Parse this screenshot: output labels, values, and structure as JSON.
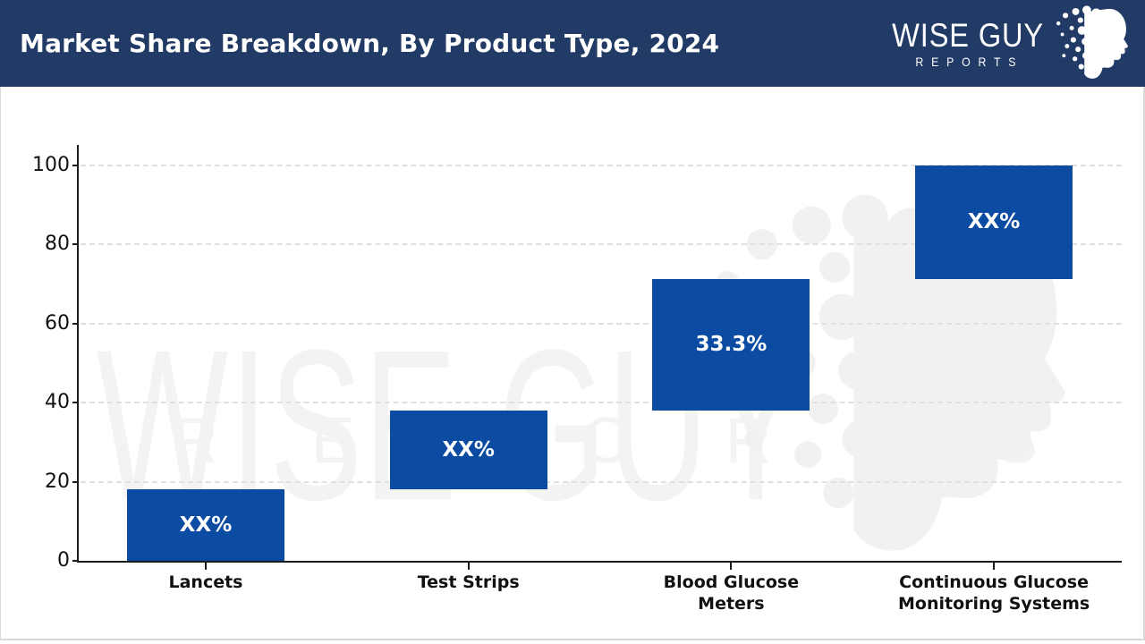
{
  "header": {
    "title": "Market Share Breakdown, By Product Type, 2024",
    "logo": {
      "line1": "WISE GUY",
      "line2": "REPORTS",
      "icon": "dotted-face-profile"
    }
  },
  "watermark": {
    "line1": "WISE GUY",
    "line2": "R E P O R T S",
    "icon": "dotted-face-profile"
  },
  "colors": {
    "header_bg": "#213a66",
    "bar": "#0b4ba1",
    "bar_label": "#ffffff",
    "grid": "#e0e0e0",
    "axis": "#1a1a1a",
    "watermark": "#f3f3f3",
    "frame": "#d9d9d9"
  },
  "chart_data": {
    "type": "bar",
    "subtype": "floating-segment-waterfall",
    "title": "Market Share Breakdown, By Product Type, 2024",
    "categories": [
      "Lancets",
      "Test Strips",
      "Blood Glucose\nMeters",
      "Continuous Glucose\nMonitoring Systems"
    ],
    "series": [
      {
        "name": "Lancets",
        "start": 0,
        "end": 18,
        "label": "XX%"
      },
      {
        "name": "Test Strips",
        "start": 18,
        "end": 38,
        "label": "XX%"
      },
      {
        "name": "Blood Glucose Meters",
        "start": 38,
        "end": 71.3,
        "label": "33.3%"
      },
      {
        "name": "Continuous Glucose Monitoring Systems",
        "start": 71.3,
        "end": 100,
        "label": "XX%"
      }
    ],
    "xlabel": "",
    "ylabel": "",
    "yticks": [
      0,
      20,
      40,
      60,
      80,
      100
    ],
    "ylim": [
      0,
      105
    ],
    "grid": "horizontal-dashed",
    "legend": "none",
    "bar_color": "#0b4ba1",
    "value_label_color": "#ffffff"
  }
}
